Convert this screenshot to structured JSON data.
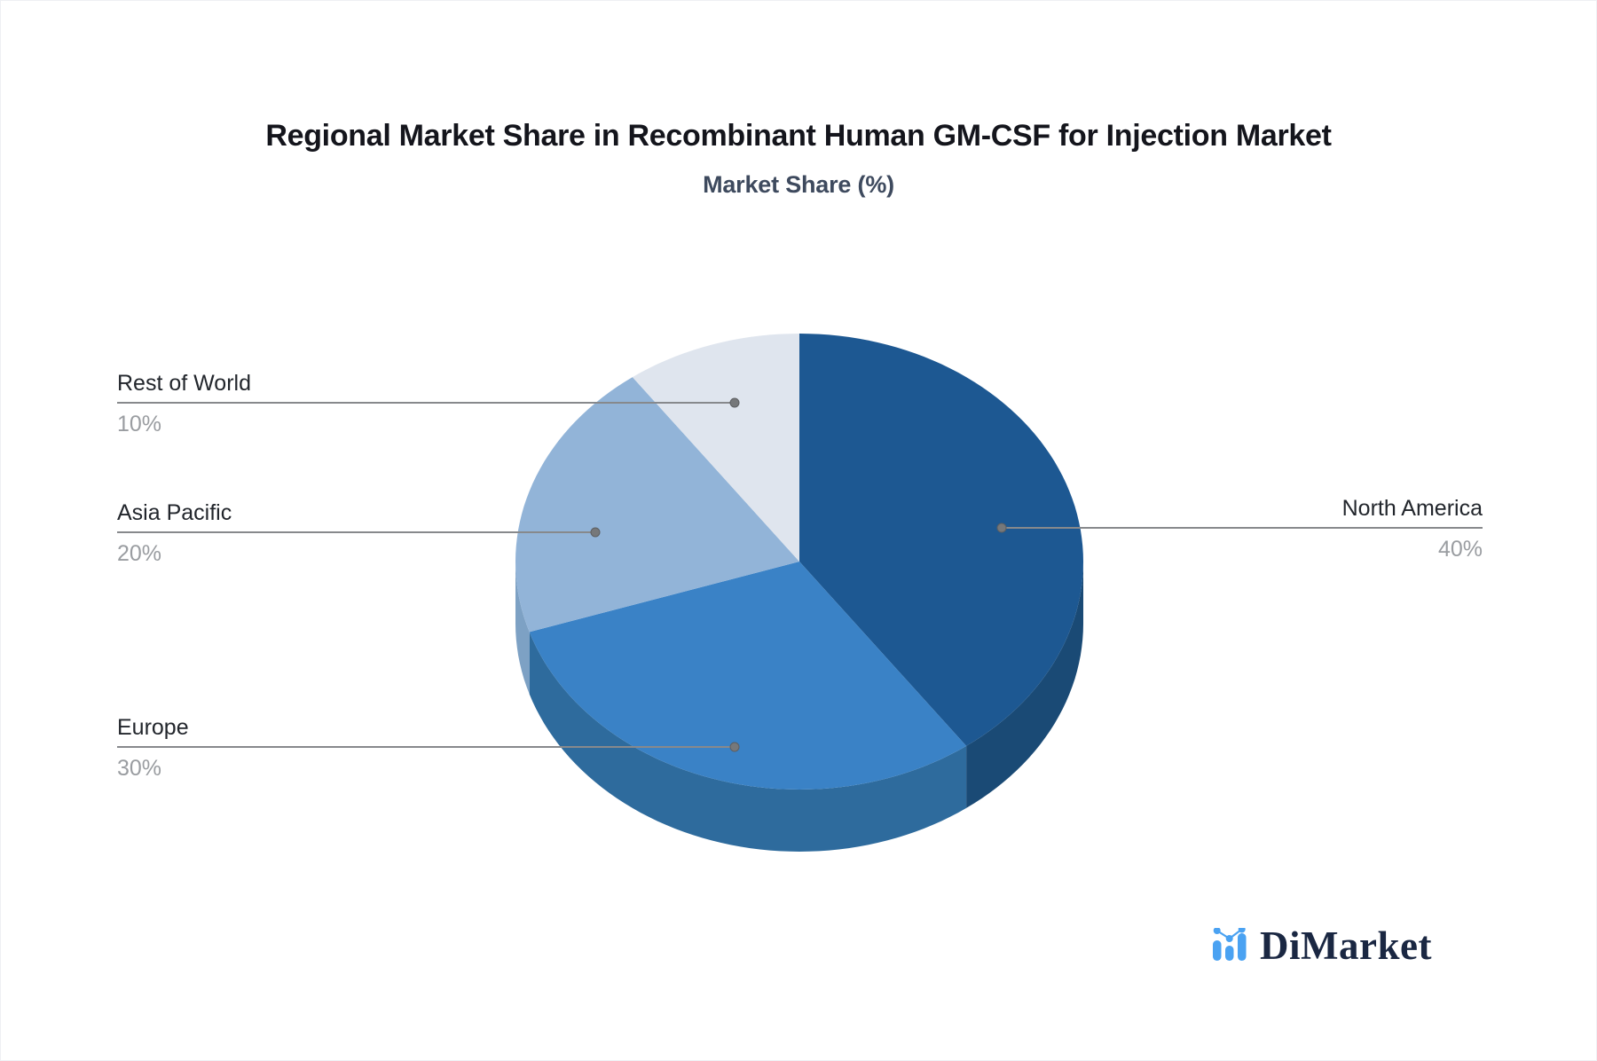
{
  "title": "Regional Market Share in Recombinant Human GM-CSF for Injection Market",
  "subtitle": "Market Share (%)",
  "brand": {
    "name": "DiMarket",
    "accent_color": "#4aa2f2",
    "text_color": "#1a2742"
  },
  "chart_data": {
    "type": "pie",
    "style": "3d",
    "unit": "%",
    "start_angle_deg": 0,
    "direction": "clockwise",
    "title": "Regional Market Share in Recombinant Human GM-CSF for Injection Market",
    "subtitle": "Market Share (%)",
    "legend_position": "callout-lines",
    "slices": [
      {
        "label": "North America",
        "value": 40,
        "value_label": "40%",
        "color": "#1d5892",
        "side_color": "#1a4a75"
      },
      {
        "label": "Europe",
        "value": 30,
        "value_label": "30%",
        "color": "#3a82c6",
        "side_color": "#2e6b9d"
      },
      {
        "label": "Asia Pacific",
        "value": 20,
        "value_label": "20%",
        "color": "#92b4d8",
        "side_color": "#7da1c4"
      },
      {
        "label": "Rest of World",
        "value": 10,
        "value_label": "10%",
        "color": "#dfe5ee",
        "side_color": "#c9d2e0"
      }
    ],
    "leader_line_color": "#87898c",
    "leader_dot_color": "#76787a"
  }
}
